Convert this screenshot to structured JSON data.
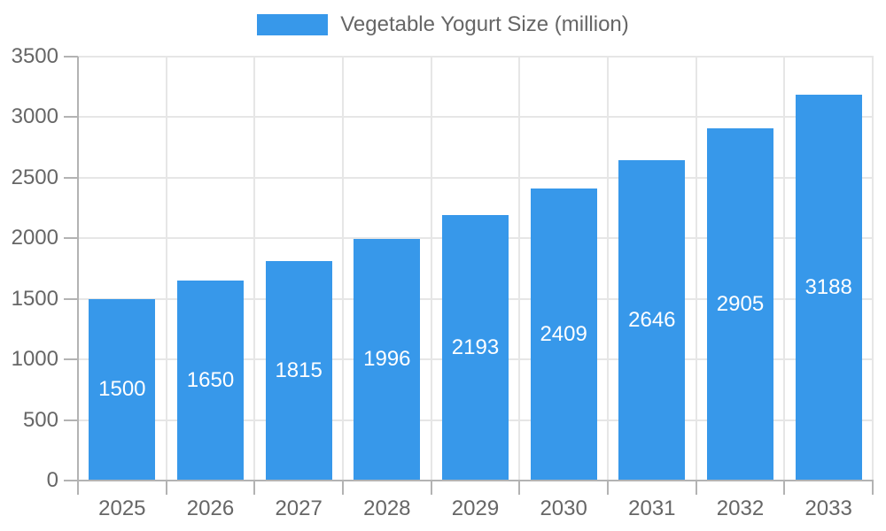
{
  "legend": {
    "label": "Vegetable Yogurt Size (million)"
  },
  "chart_data": {
    "type": "bar",
    "title": "",
    "xlabel": "",
    "ylabel": "",
    "categories": [
      "2025",
      "2026",
      "2027",
      "2028",
      "2029",
      "2030",
      "2031",
      "2032",
      "2033"
    ],
    "series": [
      {
        "name": "Vegetable Yogurt Size (million)",
        "values": [
          1500,
          1650,
          1815,
          1996,
          2193,
          2409,
          2646,
          2905,
          3188
        ]
      }
    ],
    "value_labels": [
      "1500",
      "1650",
      "1815",
      "1996",
      "2193",
      "2409",
      "2646",
      "2905",
      "3188"
    ],
    "ylim": [
      0,
      3500
    ],
    "ytick_step": 500,
    "yticks": [
      0,
      500,
      1000,
      1500,
      2000,
      2500,
      3000,
      3500
    ],
    "ytick_labels": [
      "0",
      "500",
      "1000",
      "1500",
      "2000",
      "2500",
      "3000",
      "3500"
    ],
    "grid": true,
    "legend_position": "top",
    "colors": {
      "bar": "#3798ea",
      "value_label": "#ffffff",
      "grid": "#e6e6e6",
      "axis": "#b3b3b3",
      "tick_text": "#666666",
      "legend_text": "#666666"
    }
  }
}
